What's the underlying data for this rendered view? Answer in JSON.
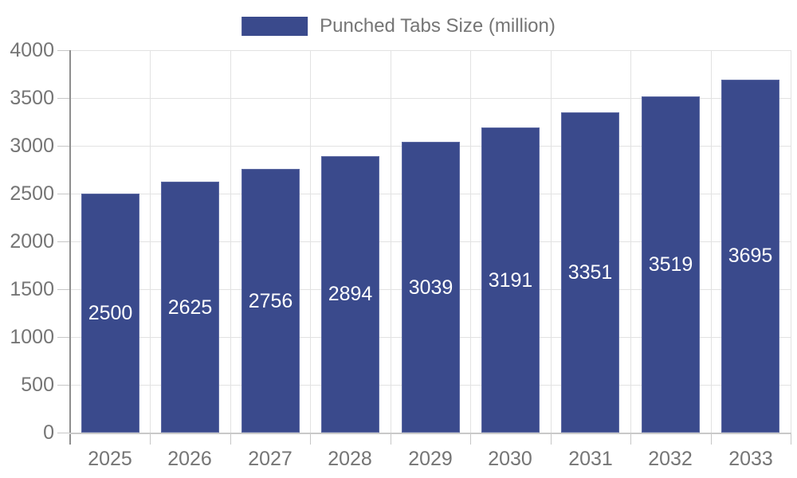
{
  "chart_data": {
    "type": "bar",
    "title": "",
    "categories": [
      "2025",
      "2026",
      "2027",
      "2028",
      "2029",
      "2030",
      "2031",
      "2032",
      "2033"
    ],
    "series": [
      {
        "name": "Punched Tabs Size (million)",
        "values": [
          2500,
          2625,
          2756,
          2894,
          3039,
          3191,
          3351,
          3519,
          3695
        ]
      }
    ],
    "value_labels_shown": true,
    "xlabel": "",
    "ylabel": "",
    "ylim": [
      0,
      4000
    ],
    "y_ticks": [
      0,
      500,
      1000,
      1500,
      2000,
      2500,
      3000,
      3500,
      4000
    ],
    "grid": "on",
    "legend_position": "top-center",
    "colors": {
      "bar": "#3a4a8c",
      "bar_border": "#5d6aa3",
      "value_label": "#ffffff",
      "axis_label": "#757575",
      "gridline": "#e2e2e2",
      "y_axis_line": "#8e8e8e",
      "x_axis_line": "#c9c9c9",
      "tick": "#c6c6c6",
      "background": "#ffffff"
    }
  }
}
